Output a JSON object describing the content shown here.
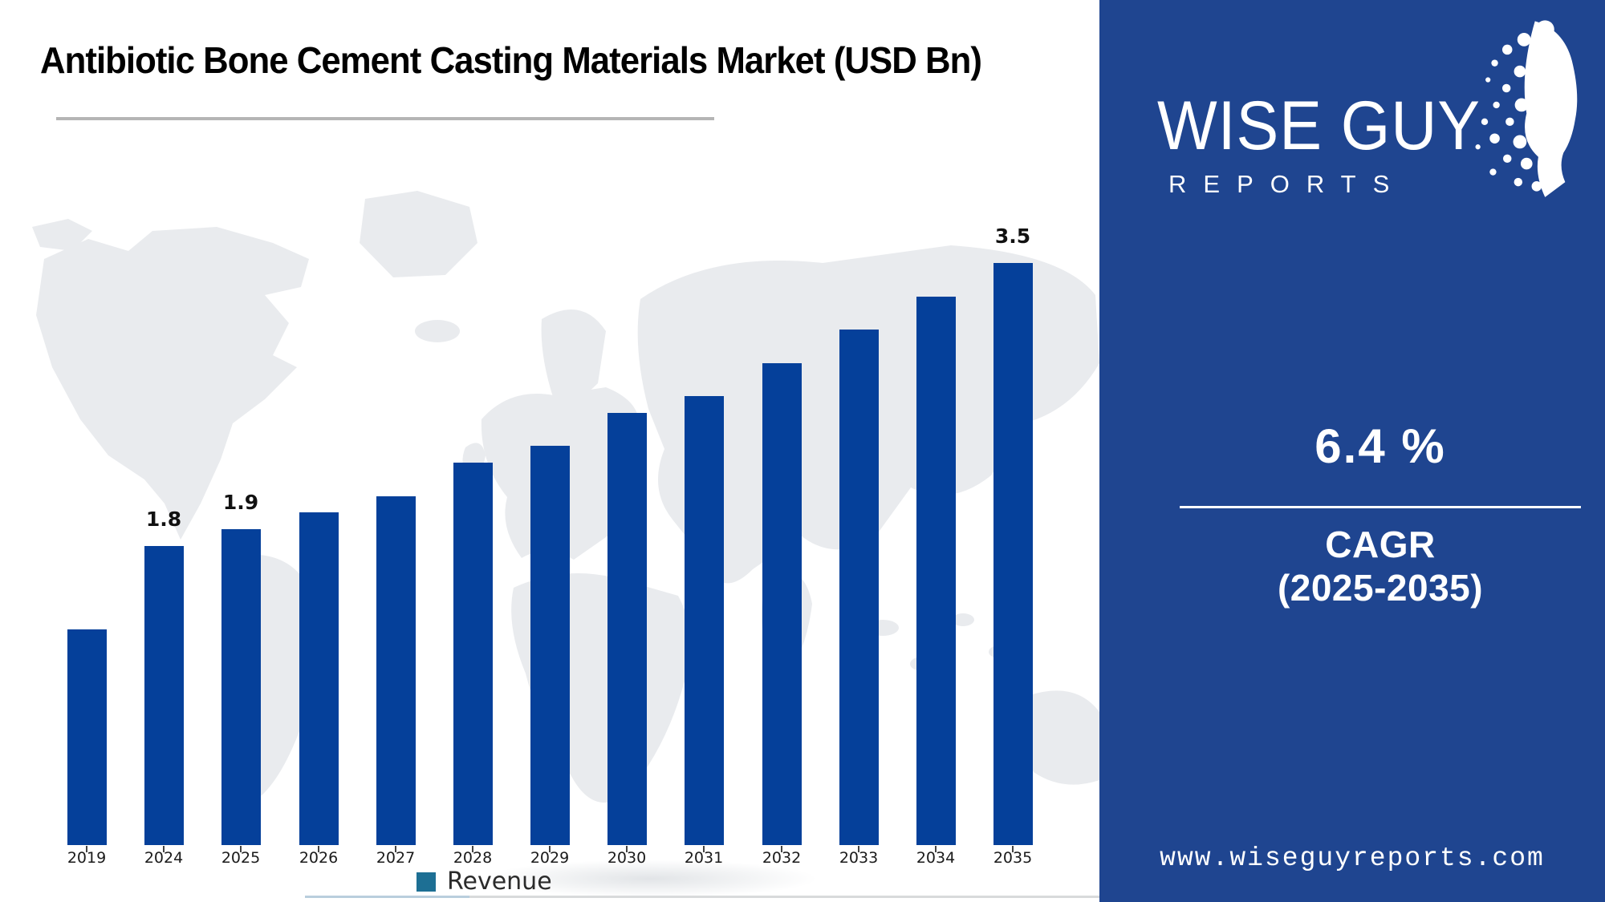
{
  "title": "Antibiotic Bone Cement Casting Materials Market (USD Bn)",
  "colors": {
    "bar": "#05409a",
    "panel": "#1f4590",
    "legend_swatch": "#1d6f94",
    "map_background": "#e9ebee",
    "title_underline": "#b5b5b5"
  },
  "chart_data": {
    "type": "bar",
    "title": "Antibiotic Bone Cement Casting Materials Market (USD Bn)",
    "xlabel": "",
    "ylabel": "",
    "unit": "USD Bn",
    "categories": [
      "2019",
      "2024",
      "2025",
      "2026",
      "2027",
      "2028",
      "2029",
      "2030",
      "2031",
      "2032",
      "2033",
      "2034",
      "2035"
    ],
    "values": [
      1.3,
      1.8,
      1.9,
      2.0,
      2.1,
      2.3,
      2.4,
      2.6,
      2.7,
      2.9,
      3.1,
      3.3,
      3.5
    ],
    "value_labels": {
      "2024": "1.8",
      "2025": "1.9",
      "2035": "3.5"
    },
    "ylim": [
      0,
      3.8
    ],
    "grid": false,
    "legend_position": "bottom",
    "legend": [
      {
        "label": "Revenue",
        "color": "#1d6f94"
      }
    ]
  },
  "legend": {
    "revenue_label": "Revenue"
  },
  "panel": {
    "logo_line1": "WISE GUY",
    "logo_line2": "REPORTS",
    "cagr_value": "6.4 %",
    "cagr_label_line1": "CAGR",
    "cagr_label_line2": "(2025-2035)",
    "website": "www.wiseguyreports.com"
  }
}
